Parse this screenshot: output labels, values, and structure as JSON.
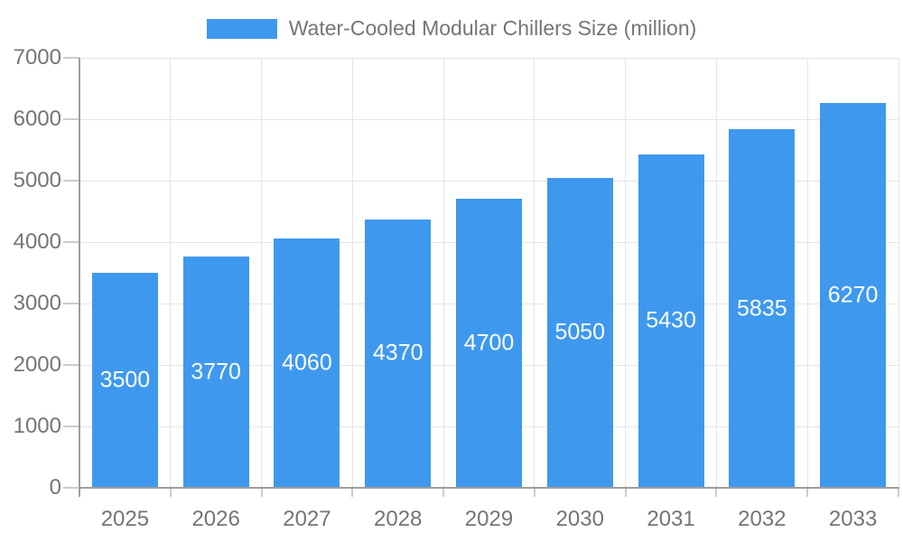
{
  "legend": {
    "label": "Water-Cooled Modular Chillers Size (million)"
  },
  "chart_data": {
    "type": "bar",
    "title": "Water-Cooled Modular Chillers Size (million)",
    "categories": [
      "2025",
      "2026",
      "2027",
      "2028",
      "2029",
      "2030",
      "2031",
      "2032",
      "2033"
    ],
    "values": [
      3500,
      3770,
      4060,
      4370,
      4700,
      5050,
      5430,
      5835,
      6270
    ],
    "xlabel": "",
    "ylabel": "",
    "ylim": [
      0,
      7000
    ],
    "ytick_step": 1000,
    "ytick_labels": [
      "0",
      "1000",
      "2000",
      "3000",
      "4000",
      "5000",
      "6000",
      "7000"
    ],
    "grid": true,
    "legend_position": "top",
    "data_labels": "inside-center"
  },
  "colors": {
    "bar": "#3E99EE",
    "bar_label_text": "#FFFFFF",
    "grid": "#E5E5E5",
    "axis_line": "#9E9E9E",
    "tick": "#CCCCCC",
    "axis_text": "#757575",
    "background": "#FFFFFF"
  }
}
